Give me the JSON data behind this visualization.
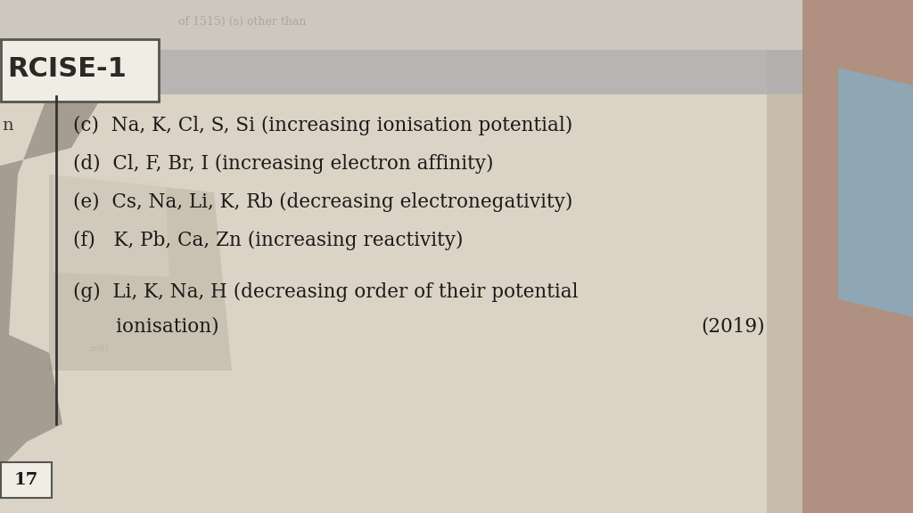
{
  "title": "RCISE-1",
  "line_c": "(c)  Na, K, Cl, S, Si (increasing ionisation potential)",
  "line_d": "(d)  Cl, F, Br, I (increasing electron affinity)",
  "line_e": "(e)  Cs, Na, Li, K, Rb (decreasing electronegativity)",
  "line_f": "(f)   K, Pb, Ca, Zn (increasing reactivity)",
  "line_g1": "(g)  Li, K, Na, H (decreasing order of their potential",
  "line_g2": "       ionisation)",
  "year": "(2019)",
  "page_number": "17",
  "bg_color_top": "#b8a898",
  "bg_color_paper": "#d8d0c4",
  "header_bg": "#b8b8b8",
  "title_box_bg": "#f0ede4",
  "title_box_border": "#555550",
  "text_color": "#1a1a1a",
  "font_size": 15.5,
  "title_font_size": 22,
  "page_num_font_size": 14,
  "right_bg_color": "#c8b8a8",
  "blue_book_color": "#90aab8"
}
